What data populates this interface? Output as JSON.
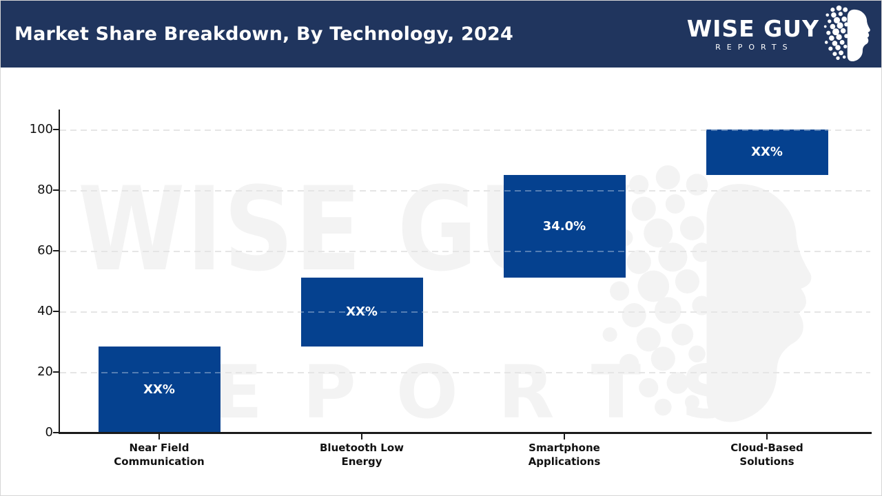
{
  "header": {
    "title": "Market Share Breakdown, By Technology, 2024",
    "bg_color": "#20355e",
    "logo": {
      "wordmark": "WISE GUY",
      "subtext": "REPORTS"
    }
  },
  "watermark": {
    "wordmark": "WISE GUY",
    "subtext": "REPORTS"
  },
  "chart_data": {
    "type": "bar",
    "subtype": "waterfall",
    "title": "Market Share Breakdown, By Technology, 2024",
    "xlabel": "",
    "ylabel": "",
    "categories": [
      "Near Field\nCommunication",
      "Bluetooth Low\nEnergy",
      "Smartphone\nApplications",
      "Cloud-Based\nSolutions"
    ],
    "segments": [
      {
        "category": "Near Field Communication",
        "start": 0,
        "end": 28.5,
        "label": "XX%"
      },
      {
        "category": "Bluetooth Low Energy",
        "start": 28.4,
        "end": 51.2,
        "label": "XX%"
      },
      {
        "category": "Smartphone Applications",
        "start": 51.1,
        "end": 85.1,
        "label": "34.0%"
      },
      {
        "category": "Cloud-Based Solutions",
        "start": 85.1,
        "end": 100.1,
        "label": "XX%"
      }
    ],
    "yticks": [
      0,
      20,
      40,
      60,
      80,
      100
    ],
    "ylim": [
      0,
      106
    ],
    "grid": true,
    "legend": false,
    "bar_color": "#05418f",
    "gridline_color": "#d9d9d9",
    "axis_color": "#1a1a1a",
    "label_color": "#ffffff"
  }
}
